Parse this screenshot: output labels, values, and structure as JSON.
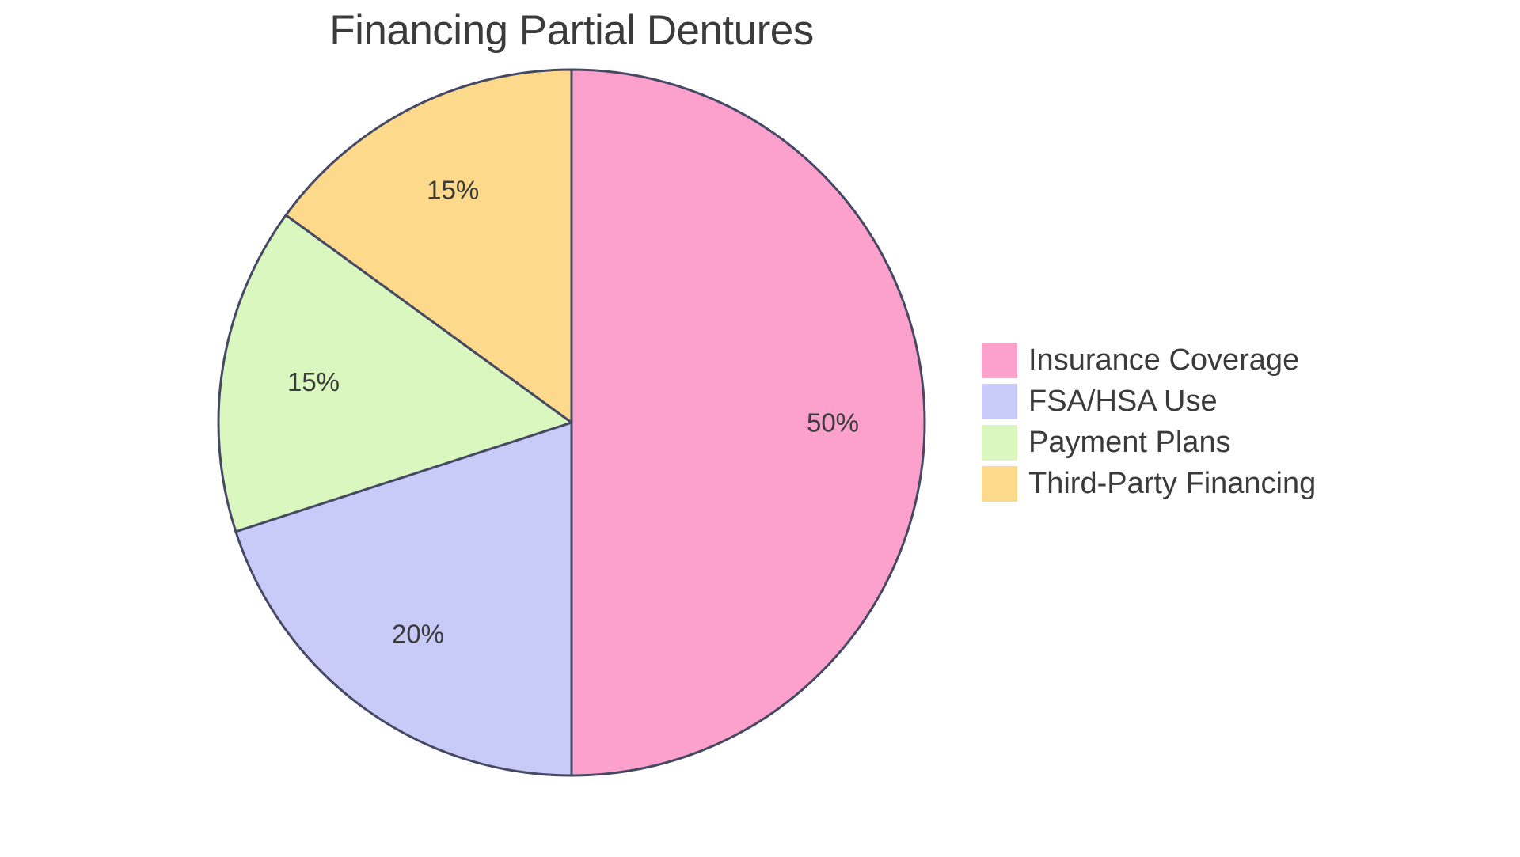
{
  "page": {
    "background_color": "#FFFFFF"
  },
  "chart_data": {
    "type": "pie",
    "title": "Financing Partial Dentures",
    "labels": [
      "Insurance Coverage",
      "FSA/HSA Use",
      "Payment Plans",
      "Third-Party Financing"
    ],
    "values": [
      50,
      20,
      15,
      15
    ],
    "value_labels": [
      "50%",
      "20%",
      "15%",
      "15%"
    ],
    "colors": [
      "#FCA1CC",
      "#C8CAF8",
      "#D9F7BE",
      "#FDD98C"
    ],
    "slice_outline_color": "#464964",
    "text_color": "#3B3B3B",
    "legend_position": "right",
    "start_angle": "12-o-clock",
    "direction": "clockwise",
    "label_radius_fraction": 0.74
  }
}
